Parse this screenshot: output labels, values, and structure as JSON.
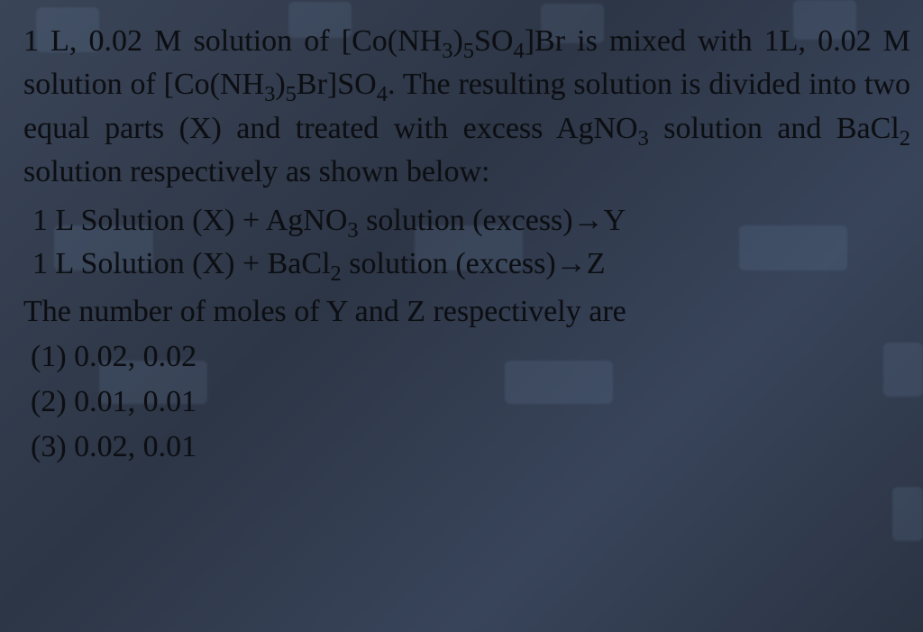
{
  "colors": {
    "text": "#0c0e12",
    "background_gradient_start": "#3a4558",
    "background_gradient_mid": "#2d3646",
    "background_gradient_end": "#2a3342",
    "watermark": "rgba(120,145,180,0.15)"
  },
  "typography": {
    "font_family": "Times New Roman",
    "body_fontsize_pt": 26,
    "line_height": 1.42,
    "weight": 500
  },
  "question": {
    "stem_html": "1 L, 0.02 M solution of [Co(NH<span class=\"sub\">3</span>)<span class=\"sub\">5</span>SO<span class=\"sub\">4</span>]Br is mixed with 1L, 0.02 M solution of [Co(NH<span class=\"sub\">3</span>)<span class=\"sub\">5</span>Br]SO<span class=\"sub\">4</span>. The resulting solution is divided into two equal parts (X) and treated with excess AgNO<span class=\"sub\">3</span> solution and BaCl<span class=\"sub\">2</span> solution respectively as shown below:",
    "reaction1_html": "1 L Solution (X) + AgNO<span class=\"sub\">3</span> solution (excess)<span class=\"arrow\">→</span>Y",
    "reaction2_html": "1 L Solution (X) + BaCl<span class=\"sub\">2</span> solution (excess)<span class=\"arrow\">→</span>Z",
    "prompt": "The number of moles of Y and Z respectively are",
    "options": [
      {
        "label": "(1)",
        "text": "0.02, 0.02"
      },
      {
        "label": "(2)",
        "text": "0.01, 0.01"
      },
      {
        "label": "(3)",
        "text": "0.02, 0.01"
      }
    ]
  }
}
